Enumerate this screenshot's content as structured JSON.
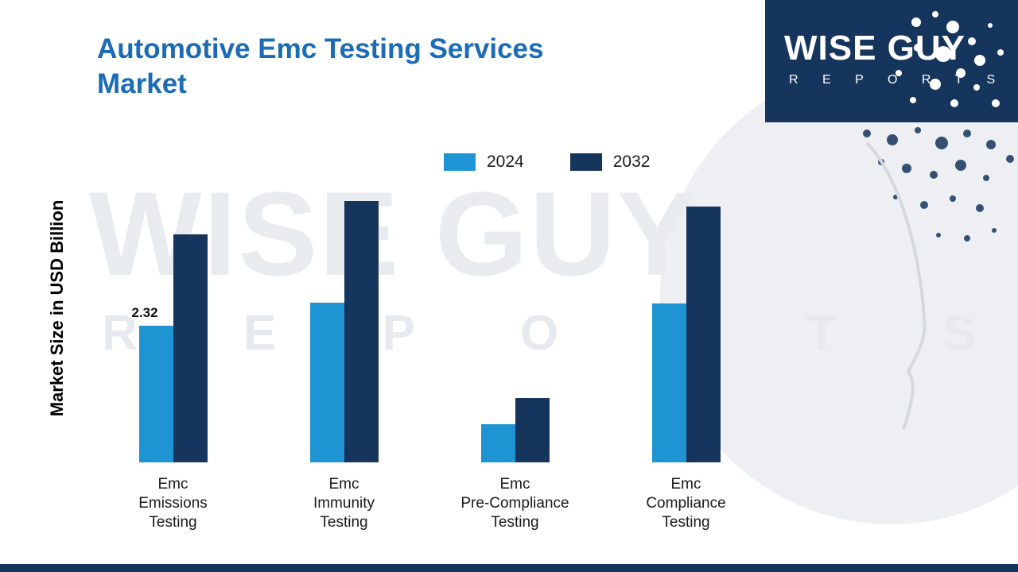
{
  "page": {
    "title": "Automotive Emc Testing Services Market"
  },
  "logo": {
    "brand_line1": "WISE GUY",
    "brand_line2": "R E P O R T S"
  },
  "watermark": {
    "line1": "WISE GUY",
    "line2": "R E P O R T S"
  },
  "colors": {
    "title_blue": "#1a6cb8",
    "navy": "#16355d",
    "series_2024": "#1e94d2",
    "series_2032": "#16355d",
    "watermark_gray": "#e9ecef",
    "circle_gray": "#edeff2"
  },
  "chart_data": {
    "type": "bar",
    "title": "Automotive Emc Testing Services Market",
    "ylabel": "Market Size in USD Billion",
    "xlabel": "",
    "ylim": [
      0,
      5
    ],
    "grid": false,
    "legend_position": "top",
    "categories": [
      "Emc Emissions Testing",
      "Emc Immunity Testing",
      "Emc Pre-Compliance Testing",
      "Emc Compliance Testing"
    ],
    "series": [
      {
        "name": "2024",
        "color": "#1e94d2",
        "values": [
          2.32,
          2.72,
          0.65,
          2.7
        ]
      },
      {
        "name": "2032",
        "color": "#16355d",
        "values": [
          3.88,
          4.45,
          1.1,
          4.35
        ]
      }
    ],
    "value_labels": [
      {
        "group": 0,
        "series": 0,
        "label": "2.32"
      }
    ]
  }
}
